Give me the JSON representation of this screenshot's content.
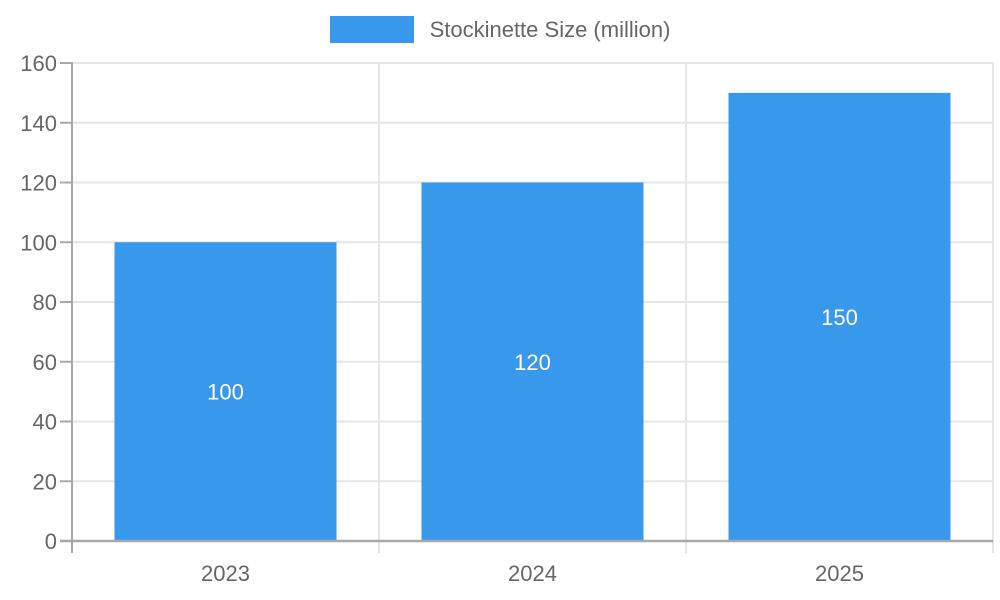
{
  "chart_data": {
    "type": "bar",
    "title": "",
    "legend_label": "Stockinette Size (million)",
    "legend_position": "top",
    "categories": [
      "2023",
      "2024",
      "2025"
    ],
    "values": [
      100,
      120,
      150
    ],
    "value_labels": [
      "100",
      "120",
      "150"
    ],
    "xlabel": "",
    "ylabel": "",
    "ylim": [
      0,
      160
    ],
    "yticks": [
      0,
      20,
      40,
      60,
      80,
      100,
      120,
      140,
      160
    ],
    "grid": true,
    "colors": {
      "bar": "#3898ec",
      "grid": "#e5e5e5",
      "axis": "#a8a8a8",
      "tick_text": "#666666",
      "value_label": "#ffffff",
      "legend_text": "#666666"
    }
  }
}
